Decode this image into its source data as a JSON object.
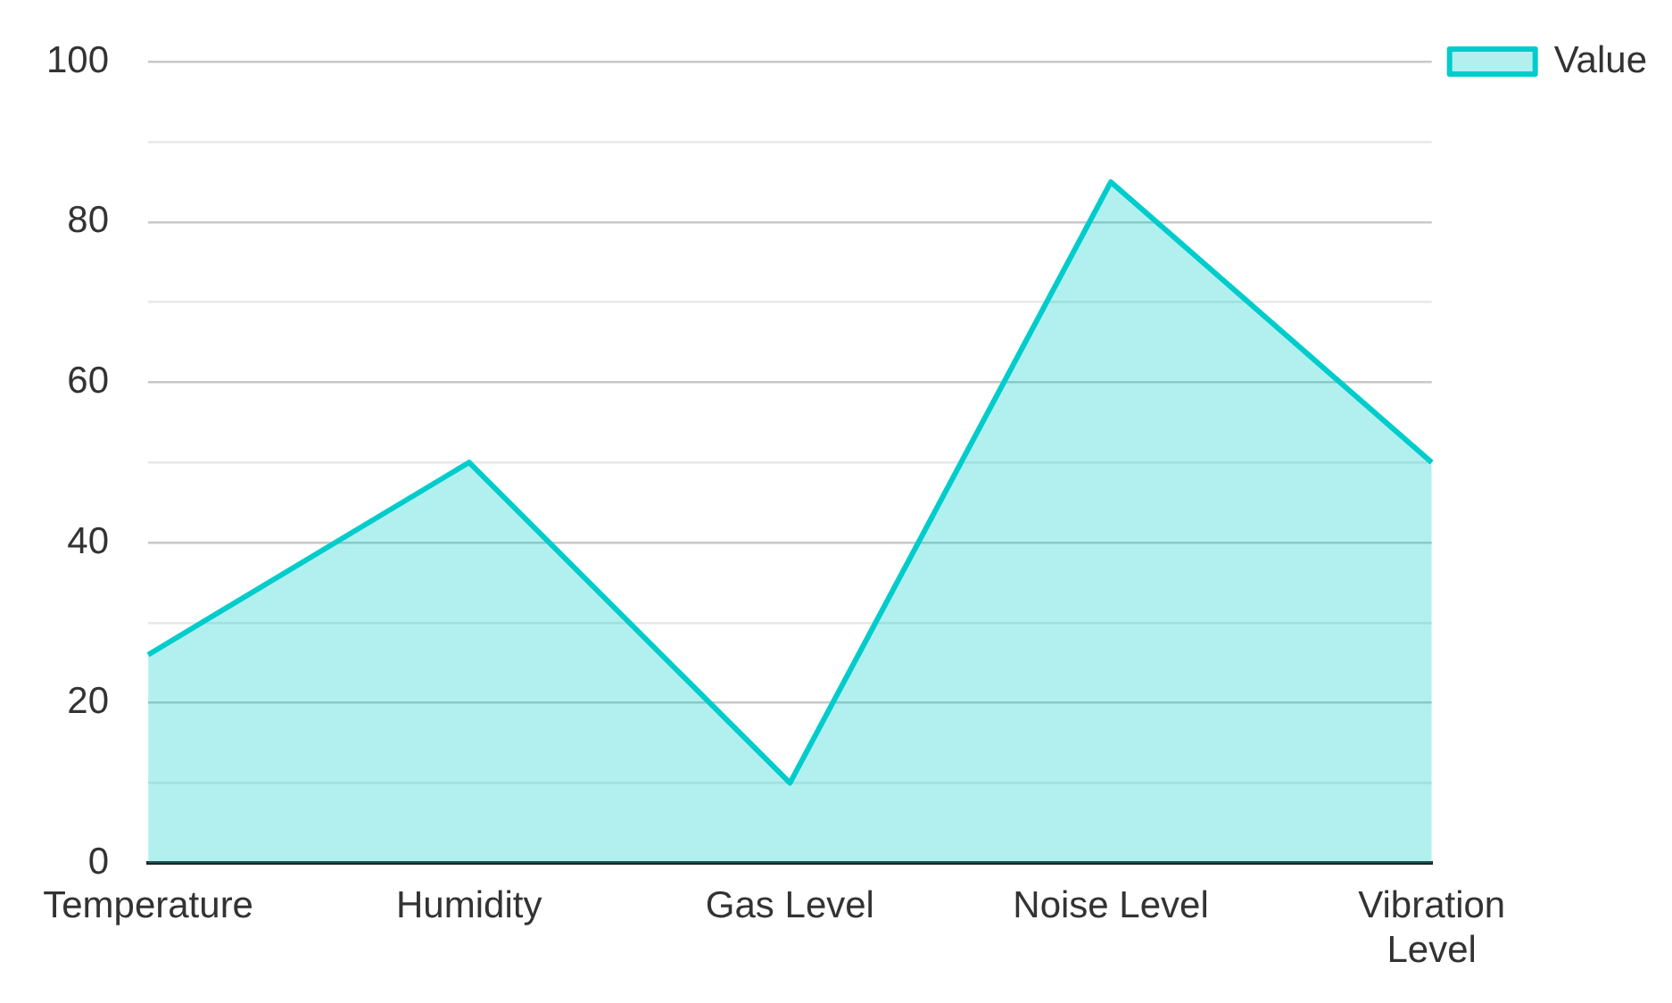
{
  "chart_data": {
    "type": "area",
    "categories": [
      "Temperature",
      "Humidity",
      "Gas Level",
      "Noise Level",
      "Vibration Level"
    ],
    "series": [
      {
        "name": "Value",
        "color": "#00cccc",
        "values": [
          26,
          50,
          10,
          85,
          50
        ]
      }
    ],
    "ylim": [
      0,
      100
    ],
    "yticks": [
      0,
      {
        "value": 10,
        "label": null
      },
      20,
      {
        "value": 30,
        "label": null
      },
      40,
      {
        "value": 50,
        "label": null
      },
      60,
      {
        "value": 70,
        "label": null
      },
      80,
      {
        "value": 90,
        "label": null
      },
      100
    ],
    "grid": "y",
    "legend": "top right"
  }
}
